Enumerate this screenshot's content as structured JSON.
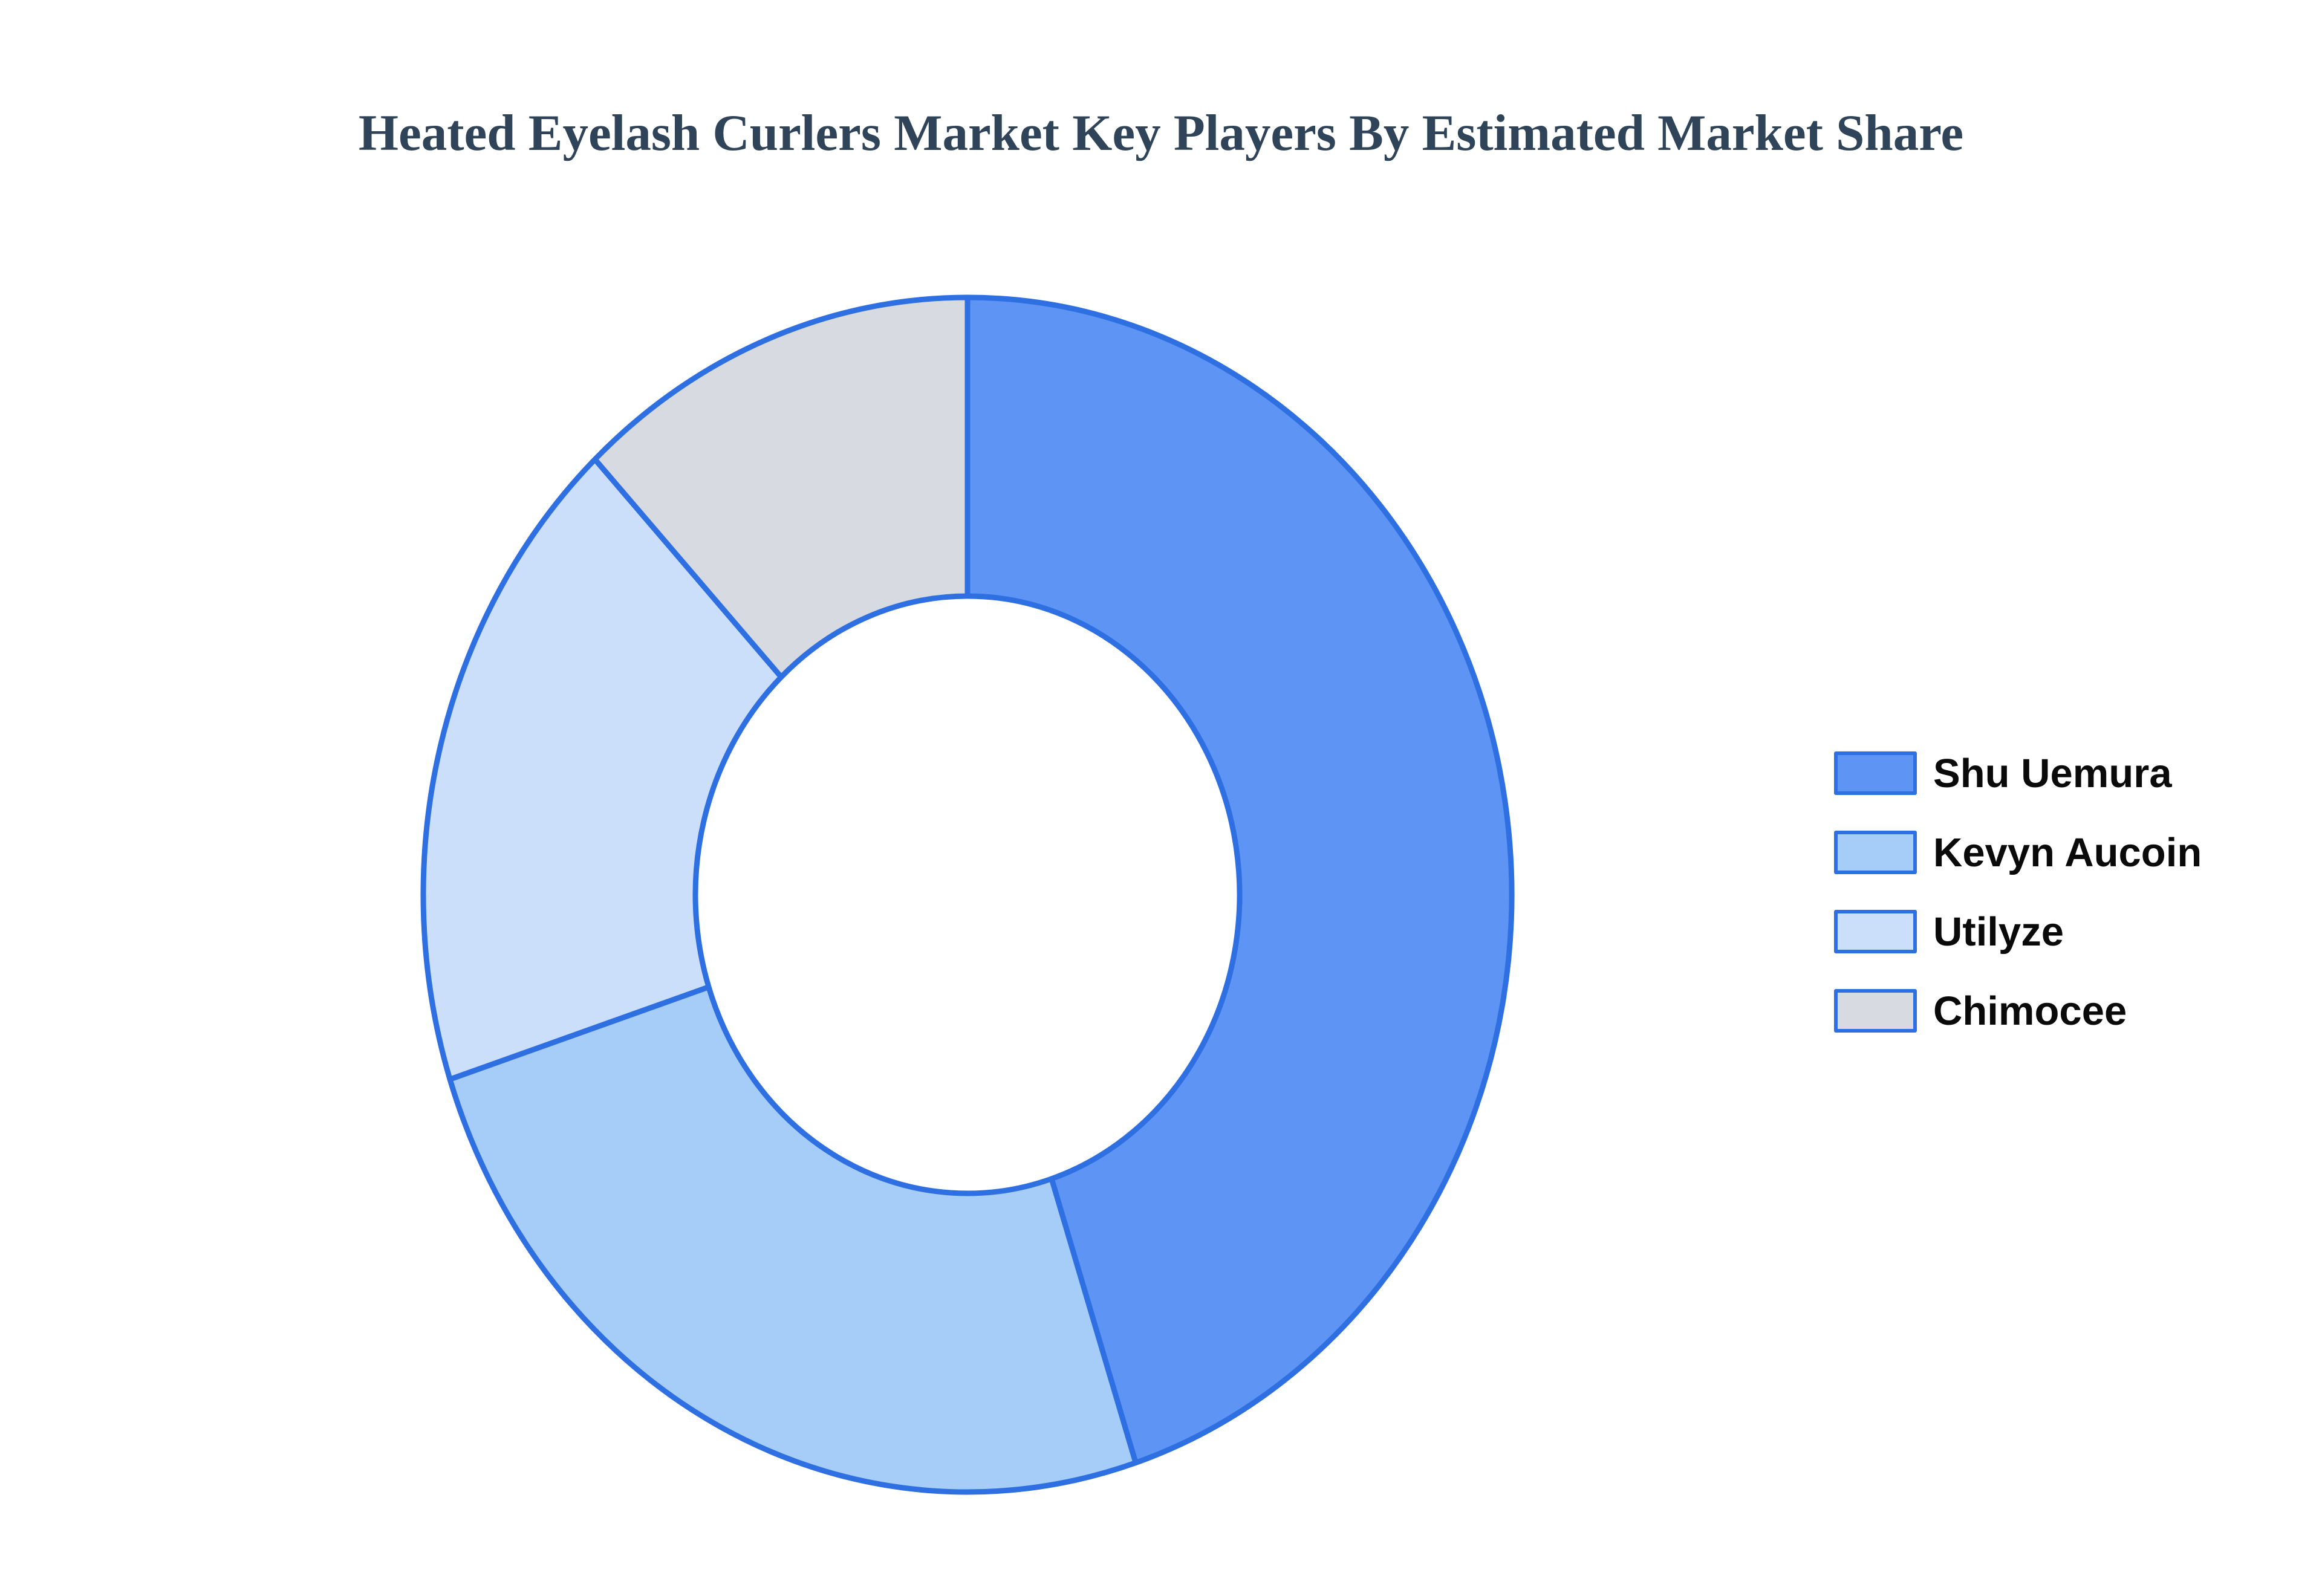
{
  "title": "Heated Eyelash Curlers Market Key Players By Estimated Market Share",
  "chart_data": {
    "type": "pie",
    "subtype": "donut",
    "hole": 0.5,
    "rotation_deg": 0,
    "direction": "clockwise",
    "labels": [
      "Shu Uemura",
      "Kevyn Aucoin",
      "Utilyze",
      "Chimocee"
    ],
    "values": [
      45,
      25,
      18,
      12
    ],
    "unit": "%",
    "colors": [
      "#5E95F4",
      "#A6CCF8",
      "#CCDFFA",
      "#D7DAE0"
    ],
    "line_color": "#2E6FE2",
    "line_width": 9,
    "legend_position": "right",
    "slice_labels_shown": false,
    "title": "Heated Eyelash Curlers Market Key Players By Estimated Market Share"
  },
  "styles": {
    "background": "#FFFFFF",
    "title_color": "#2F4458",
    "legend_text_color": "#0A0A0A"
  }
}
